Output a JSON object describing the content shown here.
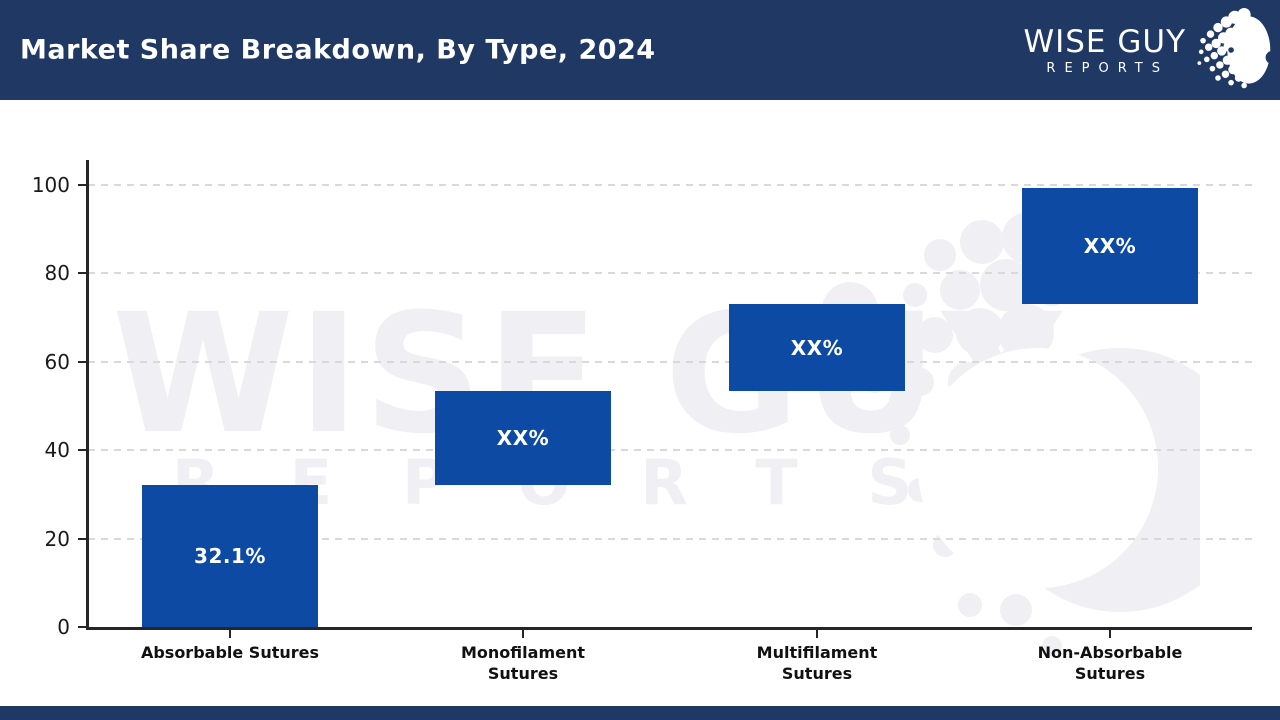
{
  "header": {
    "title": "Market Share Breakdown, By Type, 2024",
    "logo": {
      "name": "WISE GUY",
      "subtitle": "REPORTS"
    }
  },
  "watermark": {
    "line1": "WISE GUY",
    "line2": "REPORTS"
  },
  "footer": {},
  "colors": {
    "header_bg": "#1F3864",
    "footer_bg": "#1F3864",
    "bar": "#0C4AA3",
    "grid": "#D9D9D9",
    "axis": "#262626",
    "bar_label": "#FFFFFF",
    "watermark": "#F0F0F4"
  },
  "chart_data": {
    "type": "bar",
    "subtype": "waterfall",
    "title": "Market Share Breakdown, By Type, 2024",
    "categories": [
      "Absorbable Sutures",
      "Monofilament\nSutures",
      "Multifilament\nSutures",
      "Non-Absorbable\nSutures"
    ],
    "bars": [
      {
        "category": "Absorbable Sutures",
        "start": 0,
        "end": 32.1,
        "label": "32.1%"
      },
      {
        "category": "Monofilament Sutures",
        "start": 32.1,
        "end": 53.3,
        "label": "XX%"
      },
      {
        "category": "Multifilament Sutures",
        "start": 53.3,
        "end": 72.9,
        "label": "XX%"
      },
      {
        "category": "Non-Absorbable Sutures",
        "start": 72.9,
        "end": 99.3,
        "label": "XX%"
      }
    ],
    "xlabel": "",
    "ylabel": "",
    "ylim": [
      0,
      105
    ],
    "yticks": [
      0,
      20,
      40,
      60,
      80,
      100
    ],
    "grid": "horizontal-dashed",
    "legend": "none",
    "bar_color": "#0C4AA3",
    "bar_label_values_hidden": "XX% placeholders shown for all bars except Absorbable Sutures"
  }
}
